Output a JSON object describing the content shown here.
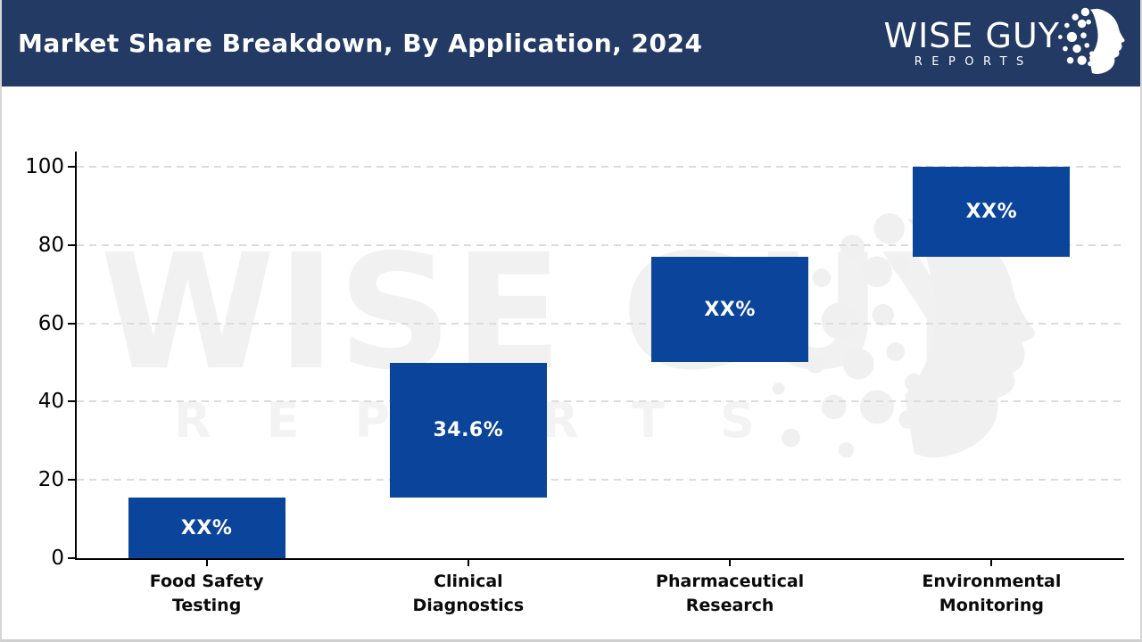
{
  "header": {
    "title": "Market Share Breakdown, By Application, 2024",
    "logo": {
      "wordmark": "WISE GUY",
      "subtitle": "REPORTS"
    }
  },
  "watermark": {
    "wordmark": "WISE GUY",
    "subtitle": "REPORTS"
  },
  "colors": {
    "header_navy": "#223A64",
    "bar_blue": "#0B449B",
    "gridline_gray": "#DCDCDC",
    "watermark_gray": "#F1F1F1",
    "value_label_white": "#FFFFFF"
  },
  "chart_data": {
    "type": "bar",
    "subtype": "floating segmented bars (waterfall-style market share breakdown)",
    "title": "Market Share Breakdown, By Application, 2024",
    "categories": [
      "Food Safety Testing",
      "Clinical Diagnostics",
      "Pharmaceutical Research",
      "Environmental Monitoring"
    ],
    "category_lines": [
      [
        "Food Safety",
        "Testing"
      ],
      [
        "Clinical",
        "Diagnostics"
      ],
      [
        "Pharmaceutical",
        "Research"
      ],
      [
        "Environmental",
        "Monitoring"
      ]
    ],
    "bars": [
      {
        "category": "Food Safety Testing",
        "label": "XX%",
        "start": 0,
        "end": 15.4
      },
      {
        "category": "Clinical Diagnostics",
        "label": "34.6%",
        "start": 15.4,
        "end": 50
      },
      {
        "category": "Pharmaceutical Research",
        "label": "XX%",
        "start": 50,
        "end": 77
      },
      {
        "category": "Environmental Monitoring",
        "label": "XX%",
        "start": 77,
        "end": 100
      }
    ],
    "y_ticks": [
      0,
      20,
      40,
      60,
      80,
      100
    ],
    "ylim": [
      0,
      100
    ],
    "xlabel": "",
    "ylabel": "",
    "legend": null,
    "grid": "horizontal dashed",
    "bar_color": "#0B449B",
    "value_label_color": "#FFFFFF"
  }
}
